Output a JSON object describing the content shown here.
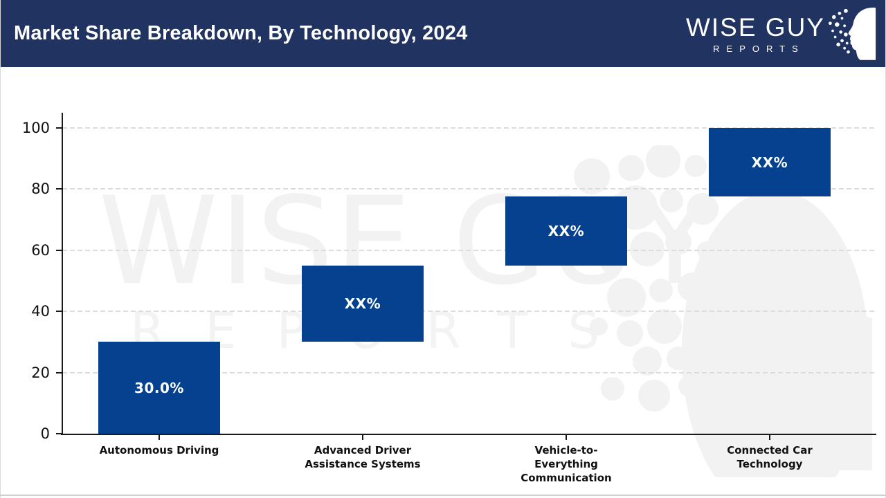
{
  "header": {
    "title": "Market Share Breakdown, By Technology, 2024",
    "logo": {
      "name_top": "WISE GUY",
      "name_bottom": "REPORTS"
    }
  },
  "watermark": {
    "text_top": "WISE GUY",
    "text_bottom": "REPORTS"
  },
  "chart_data": {
    "type": "bar",
    "variant": "waterfall",
    "title": "Market Share Breakdown, By Technology, 2024",
    "categories": [
      "Autonomous Driving",
      "Advanced Driver Assistance Systems",
      "Vehicle-to-Everything Communication",
      "Connected Car Technology"
    ],
    "category_label_lines": [
      [
        "Autonomous Driving"
      ],
      [
        "Advanced Driver",
        "Assistance Systems"
      ],
      [
        "Vehicle-to-",
        "Everything",
        "Communication"
      ],
      [
        "Connected Car",
        "Technology"
      ]
    ],
    "bars": [
      {
        "category": "Autonomous Driving",
        "start": 0,
        "end": 30,
        "value": 30,
        "label": "30.0%"
      },
      {
        "category": "Advanced Driver Assistance Systems",
        "start": 30,
        "end": 55,
        "value": 25,
        "label": "XX%"
      },
      {
        "category": "Vehicle-to-Everything Communication",
        "start": 55,
        "end": 77.5,
        "value": 22.5,
        "label": "XX%"
      },
      {
        "category": "Connected Car Technology",
        "start": 77.5,
        "end": 100,
        "value": 22.5,
        "label": "XX%"
      }
    ],
    "value_labels": [
      "30.0%",
      "XX%",
      "XX%",
      "XX%"
    ],
    "yticks": [
      0,
      20,
      40,
      60,
      80,
      100
    ],
    "ylim": [
      0,
      105
    ],
    "xlabel": "",
    "ylabel": "",
    "grid": "horizontal-dashed",
    "legend_position": "none"
  },
  "colors": {
    "header_bg": "#203361",
    "bar": "#05418f",
    "gridline": "#dcdcdc",
    "axis": "#1a1a1a",
    "watermark": "#f2f2f2",
    "title_text": "#ffffff"
  }
}
